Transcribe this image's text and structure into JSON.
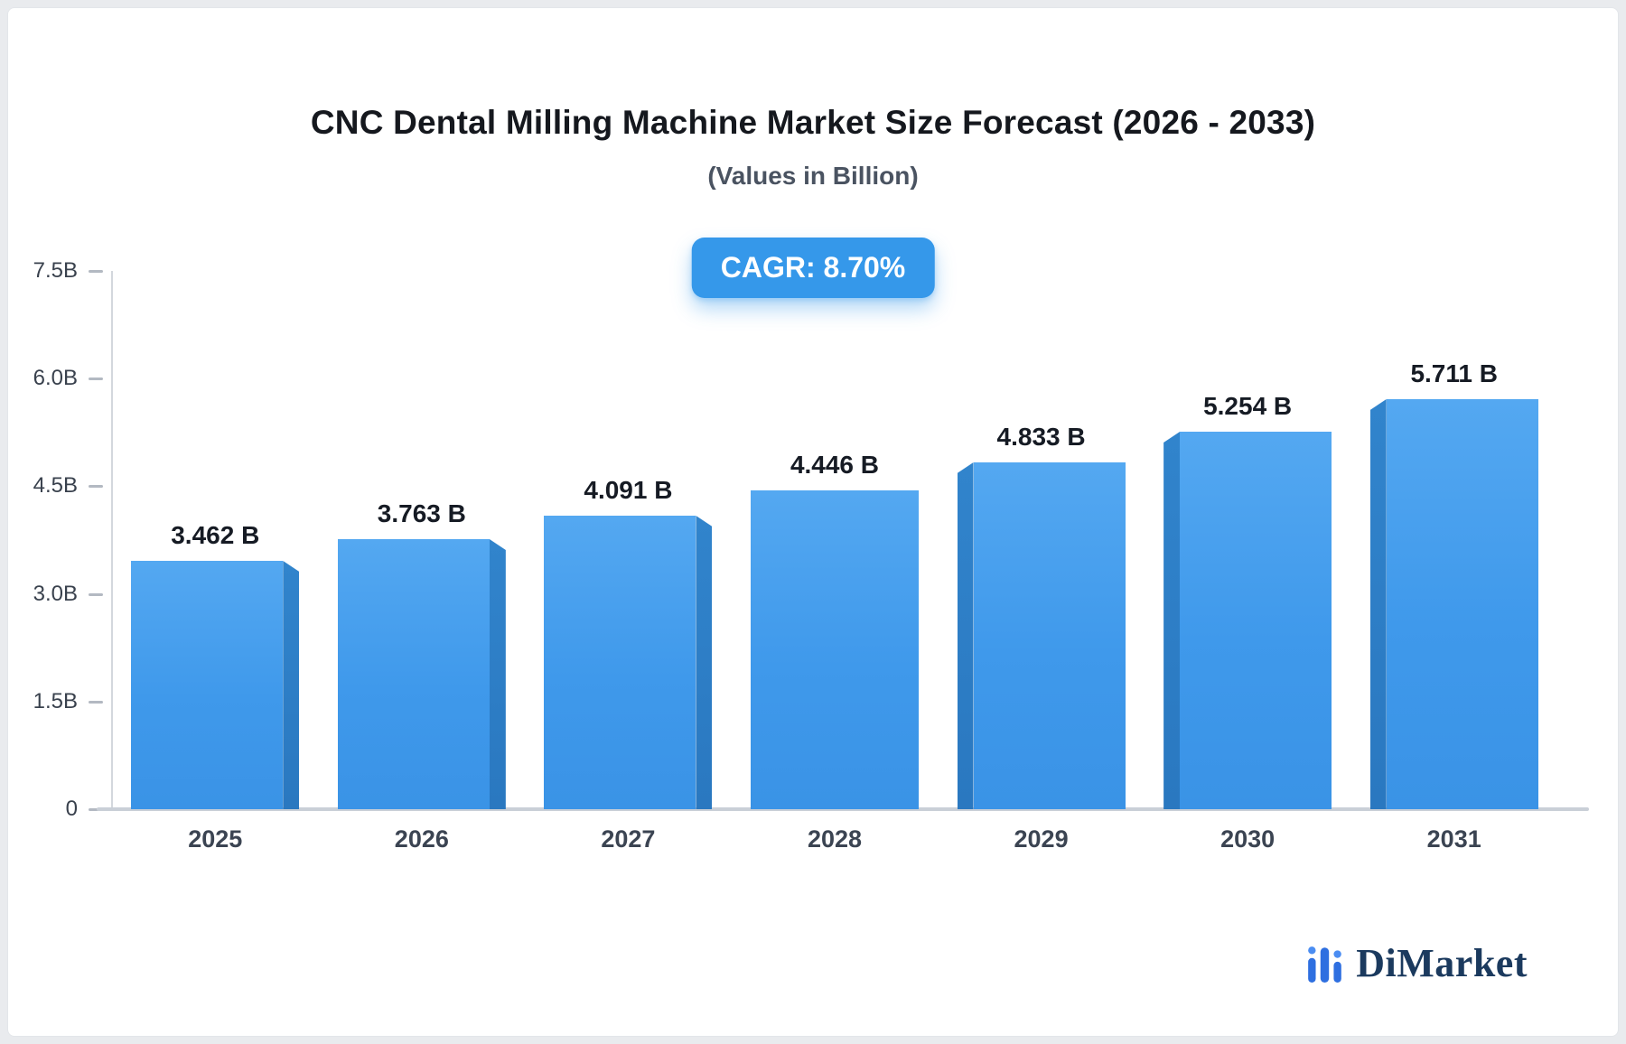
{
  "header": {
    "title": "CNC Dental Milling Machine Market Size Forecast (2026 - 2033)",
    "subtitle": "(Values in Billion)"
  },
  "badge": {
    "label": "CAGR: 8.70%",
    "bg_color": "#3598ea"
  },
  "chart_data": {
    "type": "bar",
    "title": "CNC Dental Milling Machine Market Size Forecast (2026 - 2033)",
    "subtitle": "(Values in Billion)",
    "cagr_percent": "8.70%",
    "categories": [
      "2025",
      "2026",
      "2027",
      "2028",
      "2029",
      "2030",
      "2031"
    ],
    "values": [
      3.462,
      3.763,
      4.091,
      4.446,
      4.833,
      5.254,
      5.711
    ],
    "value_labels": [
      "3.462 B",
      "3.763 B",
      "4.091 B",
      "4.446 B",
      "4.833 B",
      "5.254 B",
      "5.711 B"
    ],
    "unit": "Billion",
    "ylim": [
      0,
      7.5
    ],
    "yticks": [
      {
        "value": 7.5,
        "label": "7.5B"
      },
      {
        "value": 6.0,
        "label": "6.0B"
      },
      {
        "value": 4.5,
        "label": "4.5B"
      },
      {
        "value": 3.0,
        "label": "3.0B"
      },
      {
        "value": 1.5,
        "label": "1.5B"
      },
      {
        "value": 0,
        "label": "0"
      }
    ],
    "grid": false,
    "legend_position": "none",
    "bar_color": "#3f99eb",
    "bar_side_color": "#2a78c0"
  },
  "logo": {
    "text": "DiMarket",
    "icon": "bar-chart-logo-icon",
    "text_color": "#1b3a5e",
    "icon_color": "#2e6fe0"
  }
}
